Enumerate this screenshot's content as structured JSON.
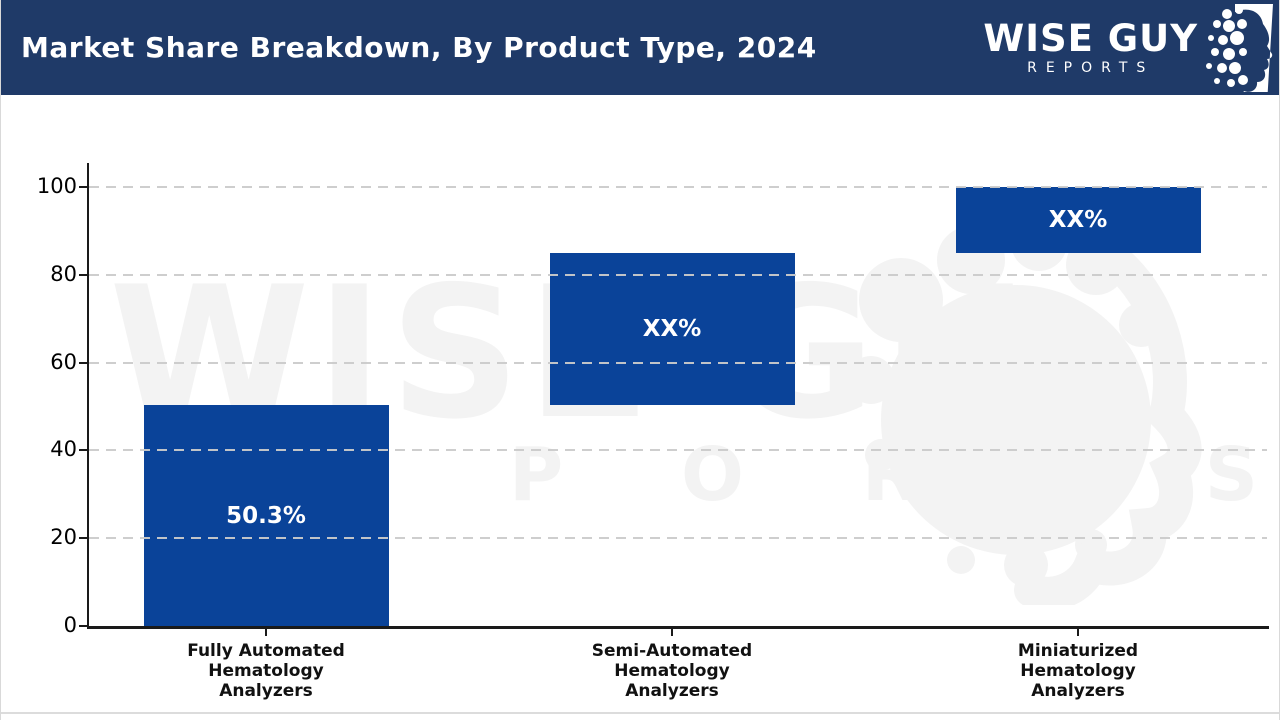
{
  "header": {
    "title": "Market Share Breakdown, By Product Type, 2024",
    "logo": {
      "line1": "WISE GUY",
      "line2": "REPORTS"
    }
  },
  "watermark": {
    "line1": "WISE GU",
    "line2": "REPORTS"
  },
  "chart_data": {
    "type": "bar",
    "subtype": "waterfall",
    "title": "Market Share Breakdown, By Product Type, 2024",
    "categories": [
      [
        "Fully Automated",
        "Hematology",
        "Analyzers"
      ],
      [
        "Semi-Automated",
        "Hematology",
        "Analyzers"
      ],
      [
        "Miniaturized",
        "Hematology",
        "Analyzers"
      ]
    ],
    "segments": [
      {
        "start": 0,
        "end": 50.3,
        "label": "50.3%"
      },
      {
        "start": 50.3,
        "end": 84.9,
        "label": "XX%"
      },
      {
        "start": 84.9,
        "end": 100,
        "label": "XX%"
      }
    ],
    "yticks": [
      0,
      20,
      40,
      60,
      80,
      100
    ],
    "ylim": [
      0,
      100
    ],
    "grid": true,
    "legend": "none",
    "bar_color": "#0a4399",
    "bar_label_color": "#ffffff",
    "axis_color": "#1a1a1a",
    "grid_color": "#cbcbcb",
    "header_color": "#1f3a68",
    "watermark_color": "#f3f3f3"
  }
}
